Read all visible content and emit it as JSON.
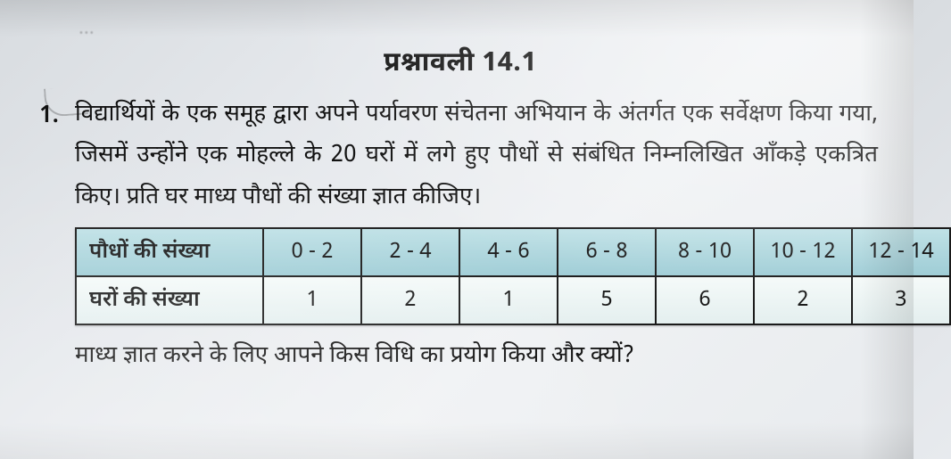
{
  "faded_top": "…",
  "heading": "प्रश्नावली 14.1",
  "question_number": "1.",
  "question_text": "विद्यार्थियों के एक समूह द्वारा अपने पर्यावरण संचेतना अभियान के अंतर्गत एक सर्वेक्षण किया गया, जिसमें उन्होंने एक मोहल्ले के 20 घरों में लगे हुए पौधों से संबंधित निम्नलिखित आँकड़े एकत्रित किए। प्रति घर माध्य पौधों की संख्या ज्ञात कीजिए।",
  "followup_text": "माध्य ज्ञात करने के लिए आपने किस विधि का प्रयोग किया और क्यों?",
  "table": {
    "row1_label": "पौधों की संख्या",
    "row2_label": "घरों की संख्या",
    "intervals": [
      "0 - 2",
      "2 - 4",
      "4 - 6",
      "6 - 8",
      "8 - 10",
      "10 - 12",
      "12 - 14"
    ],
    "frequencies": [
      "1",
      "2",
      "1",
      "5",
      "6",
      "2",
      "3"
    ],
    "header_bg": "#aad7de",
    "body_bg": "#eef6f5",
    "border_color": "#1a1a1a",
    "font_size_pt": 18
  },
  "style": {
    "page_bg": "#e6e9ec",
    "text_color": "#111111",
    "heading_fontsize_pt": 22,
    "body_fontsize_pt": 19
  }
}
